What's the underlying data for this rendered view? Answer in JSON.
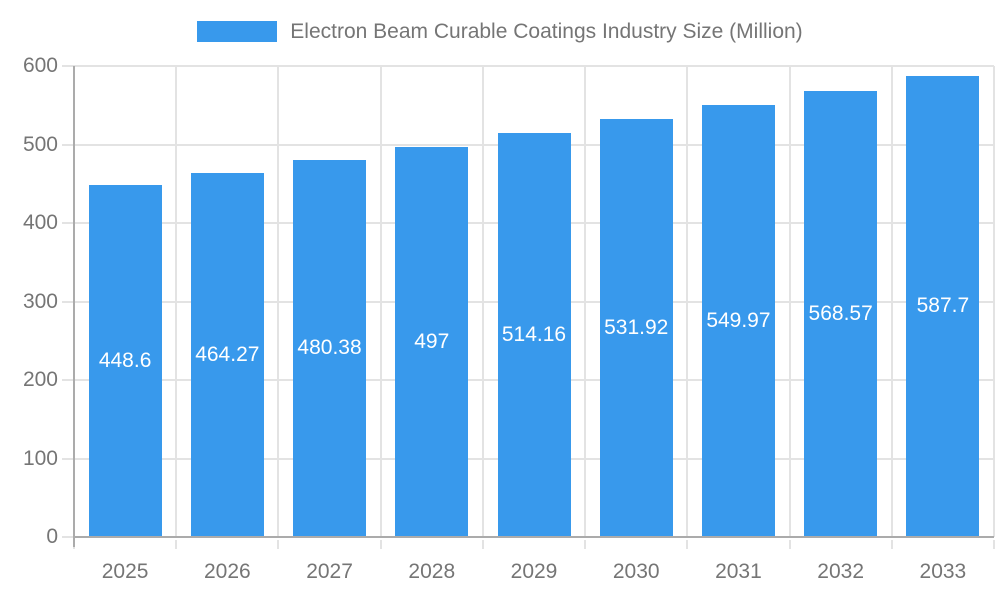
{
  "legend": {
    "label": "Electron Beam Curable Coatings Industry Size (Million)"
  },
  "chart_data": {
    "type": "bar",
    "series_name": "Electron Beam Curable Coatings Industry Size (Million)",
    "categories": [
      "2025",
      "2026",
      "2027",
      "2028",
      "2029",
      "2030",
      "2031",
      "2032",
      "2033"
    ],
    "values": [
      448.6,
      464.27,
      480.38,
      497,
      514.16,
      531.92,
      549.97,
      568.57,
      587.7
    ],
    "value_labels": [
      "448.6",
      "464.27",
      "480.38",
      "497",
      "514.16",
      "531.92",
      "549.97",
      "568.57",
      "587.7"
    ],
    "title": "",
    "xlabel": "",
    "ylabel": "",
    "ylim": [
      0,
      600
    ],
    "ytick_step": 100,
    "ytick_labels": [
      "0",
      "100",
      "200",
      "300",
      "400",
      "500",
      "600"
    ],
    "grid": true,
    "legend_position": "top"
  },
  "colors": {
    "bar": "#3899EC",
    "axis_line": "#ABABAB",
    "gridline": "#E3E3E3",
    "axis_text": "#757575",
    "value_label_text": "#FFFFFF"
  }
}
